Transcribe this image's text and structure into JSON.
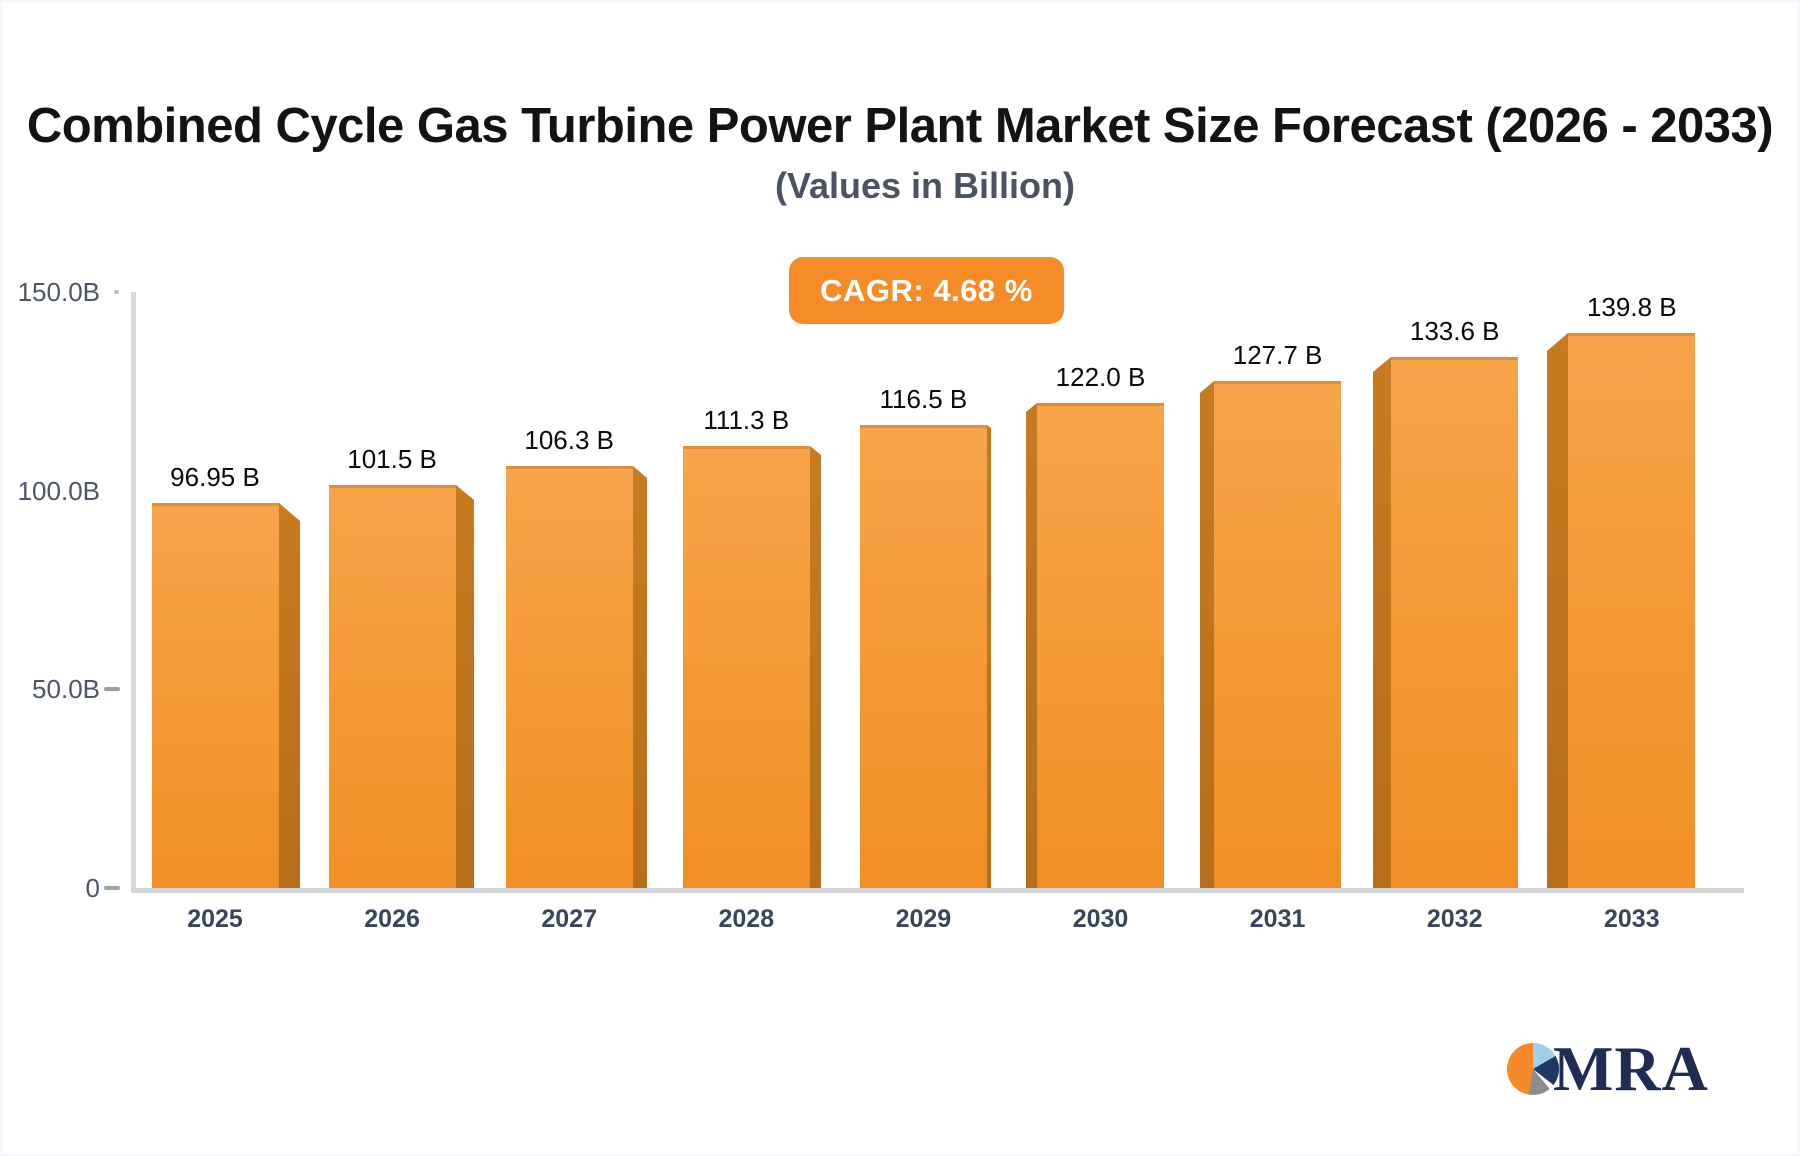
{
  "header": {
    "title": "Combined Cycle Gas Turbine Power Plant Market Size Forecast (2026 - 2033)",
    "subtitle": "(Values in Billion)"
  },
  "badge": {
    "label": "CAGR: 4.68 %"
  },
  "chart_data": {
    "type": "bar",
    "title": "Combined Cycle Gas Turbine Power Plant Market Size Forecast (2026 - 2033)",
    "subtitle": "(Values in Billion)",
    "categories": [
      "2025",
      "2026",
      "2027",
      "2028",
      "2029",
      "2030",
      "2031",
      "2032",
      "2033"
    ],
    "values": [
      96.95,
      101.5,
      106.3,
      111.3,
      116.5,
      122.0,
      127.7,
      133.6,
      139.8
    ],
    "value_labels": [
      "96.95 B",
      "101.5 B",
      "106.3 B",
      "111.3 B",
      "116.5 B",
      "122.0 B",
      "127.7 B",
      "133.6 B",
      "139.8 B"
    ],
    "xlabel": "",
    "ylabel": "",
    "ylim": [
      0,
      150
    ],
    "grid": false,
    "legend": "none",
    "y_ticks": [
      {
        "label": "150.0B",
        "value": 150,
        "mark": "dot"
      },
      {
        "label": "100.0B",
        "value": 100,
        "mark": "none"
      },
      {
        "label": "50.0B",
        "value": 50,
        "mark": "dash"
      },
      {
        "label": "0",
        "value": 0,
        "mark": "dash"
      }
    ],
    "annotation": "CAGR: 4.68 %",
    "colors": {
      "bar_front_top": "#f7a44b",
      "bar_front_bottom": "#f18f26",
      "bar_side": "#bb731c",
      "badge_background": "#f68c28",
      "badge_text": "#ffffff",
      "axis_line": "#d6d7db",
      "value_label": "#0a0a0a",
      "x_label": "#39455c",
      "y_label": "#4c5668"
    }
  },
  "logo": {
    "text": "MRA"
  }
}
